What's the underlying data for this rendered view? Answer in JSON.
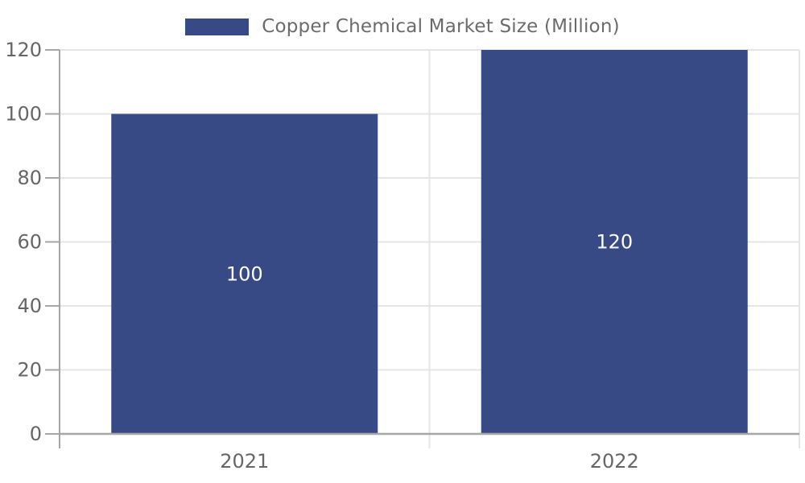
{
  "chart_data": {
    "type": "bar",
    "categories": [
      "2021",
      "2022"
    ],
    "values": [
      100,
      120
    ],
    "bar_labels": [
      "100",
      "120"
    ],
    "title": "",
    "xlabel": "",
    "ylabel": "",
    "ylim": [
      0,
      120
    ],
    "yticks": [
      0,
      20,
      40,
      60,
      80,
      100,
      120
    ],
    "grid": true,
    "legend": {
      "position": "top-center",
      "label": "Copper Chemical Market Size (Million)"
    },
    "colors": {
      "bar": "#384A85",
      "axis": "#a6a6a6",
      "grid": "#e5e5e5",
      "tick_label": "#666666",
      "data_label": "#ffffff",
      "background": "#ffffff"
    }
  }
}
